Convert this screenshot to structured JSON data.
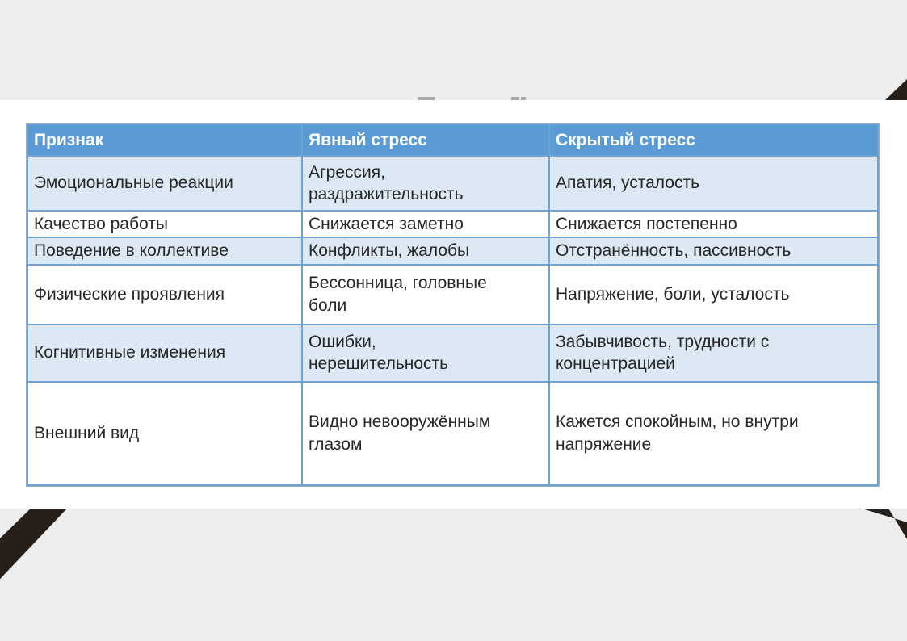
{
  "colors": {
    "background": "#ededed",
    "slide": "#ffffff",
    "header_bg": "#5b9bd5",
    "header_text": "#ffffff",
    "band_row": "#dce8f3",
    "plain_row": "#ffffff",
    "border": "#6fa3d4",
    "cell_text": "#262626",
    "ribbon": "#261f19",
    "fragment": "#a9a9a9"
  },
  "table": {
    "columns": [
      "Признак",
      "Явный стресс",
      "Скрытый стресс"
    ],
    "rows": [
      [
        "Эмоциональные реакции",
        "Агрессия,\nраздражительность",
        "Апатия, усталость"
      ],
      [
        "Качество работы",
        "Снижается заметно",
        "Снижается постепенно"
      ],
      [
        "Поведение в коллективе",
        "Конфликты, жалобы",
        "Отстранённость, пассивность"
      ],
      [
        "Физические проявления",
        "Бессонница, головные\nболи",
        "Напряжение, боли, усталость"
      ],
      [
        "Когнитивные изменения",
        "Ошибки,\nнерешительность",
        "Забывчивость, трудности с\nконцентрацией"
      ],
      [
        "Внешний вид",
        "Видно невооружённым\nглазом",
        "Кажется спокойным, но внутри\nнапряжение"
      ]
    ]
  }
}
